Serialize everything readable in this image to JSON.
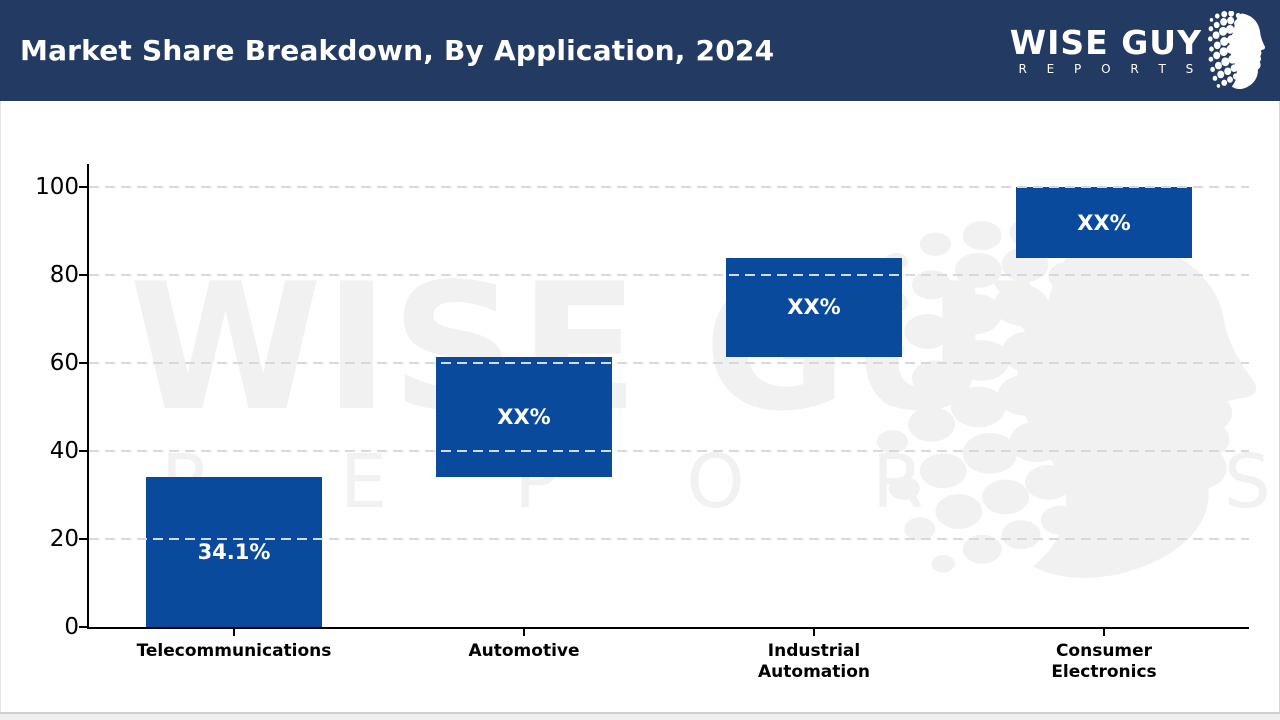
{
  "header": {
    "title": "Market Share Breakdown, By Application, 2024",
    "brand": {
      "name": "WISE GUY",
      "sub": "R E P O R T S"
    }
  },
  "watermark": {
    "name": "WISE GUY",
    "sub": "R E P O R T S"
  },
  "chart_data": {
    "type": "bar",
    "variant": "waterfall",
    "title": "Market Share Breakdown, By Application, 2024",
    "categories": [
      "Telecommunications",
      "Automotive",
      "Industrial Automation",
      "Consumer Electronics"
    ],
    "category_lines": [
      [
        "Telecommunications"
      ],
      [
        "Automotive"
      ],
      [
        "Industrial",
        "Automation"
      ],
      [
        "Consumer",
        "Electronics"
      ]
    ],
    "segments": [
      {
        "category": "Telecommunications",
        "start": 0,
        "end": 34.1,
        "label": "34.1%"
      },
      {
        "category": "Automotive",
        "start": 34.1,
        "end": 61.5,
        "label": "XX%"
      },
      {
        "category": "Industrial Automation",
        "start": 61.5,
        "end": 84,
        "label": "XX%"
      },
      {
        "category": "Consumer Electronics",
        "start": 84,
        "end": 100,
        "label": "XX%"
      }
    ],
    "yticks": [
      0,
      20,
      40,
      60,
      80,
      100
    ],
    "ylim": [
      0,
      105
    ],
    "grid": {
      "horizontal": true,
      "style": "dashed"
    },
    "bar_color": "#0a4a9c",
    "bar_label_color": "#ffffff",
    "axis_color": "#000000",
    "gridline_color": "#d9d9d9"
  },
  "colors": {
    "header_bg": "#233a63",
    "watermark": "#f1f1f1",
    "footer_line": "#cfcfcf"
  }
}
